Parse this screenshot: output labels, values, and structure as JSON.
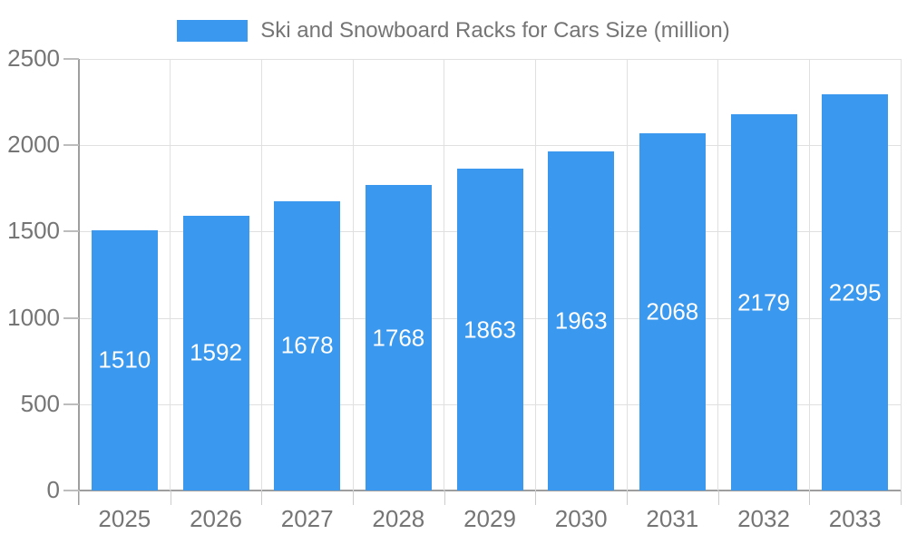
{
  "legend": {
    "label": "Ski and Snowboard Racks for Cars Size (million)"
  },
  "chart_data": {
    "type": "bar",
    "title": "Ski and Snowboard Racks for Cars Size (million)",
    "categories": [
      "2025",
      "2026",
      "2027",
      "2028",
      "2029",
      "2030",
      "2031",
      "2032",
      "2033"
    ],
    "values": [
      1510,
      1592,
      1678,
      1768,
      1863,
      1963,
      2068,
      2179,
      2295
    ],
    "xlabel": "",
    "ylabel": "",
    "ylim": [
      0,
      2500
    ],
    "yticks": [
      0,
      500,
      1000,
      1500,
      2000,
      2500
    ],
    "grid": true,
    "legend_position": "top-center",
    "bar_label_position": "inside-center",
    "colors": {
      "bar": "#3A99EE",
      "gridline": "#e0e0e0",
      "axis_line": "#9e9e9e",
      "tick": "#bdbdbd",
      "axis_text": "#757575",
      "bar_label_text": "#ffffff",
      "background": "#ffffff"
    }
  }
}
